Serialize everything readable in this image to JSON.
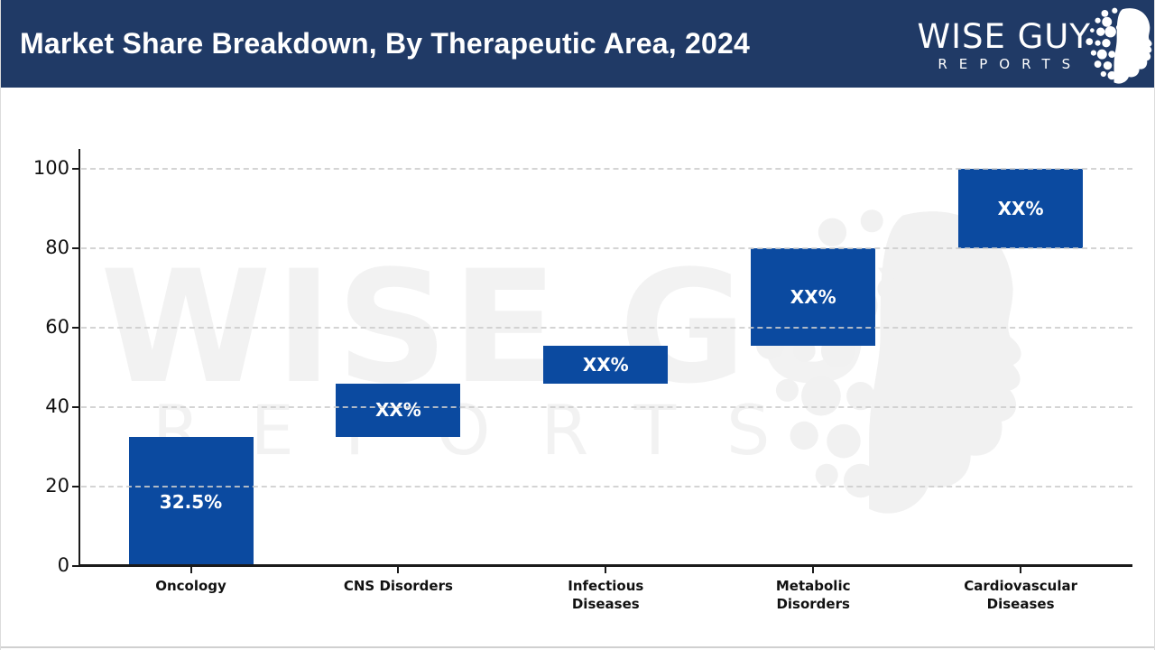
{
  "header": {
    "title": "Market Share Breakdown, By Therapeutic Area, 2024",
    "bg_color": "#203a66",
    "logo": {
      "line1": "WISE GUY",
      "line2": "REPORTS"
    }
  },
  "watermark": {
    "line1": "WISE GUY",
    "line2": "REPORTS"
  },
  "chart_data": {
    "type": "bar",
    "subtype": "waterfall",
    "title": "Market Share Breakdown, By Therapeutic Area, 2024",
    "categories": [
      "Oncology",
      "CNS Disorders",
      "Infectious Diseases",
      "Metabolic Disorders",
      "Cardiovascular Diseases"
    ],
    "series": [
      {
        "name": "Market share (%)",
        "segments": [
          {
            "category": "Oncology",
            "start": 0,
            "end": 32.5,
            "label": "32.5%"
          },
          {
            "category": "CNS Disorders",
            "start": 32.5,
            "end": 46,
            "label": "XX%"
          },
          {
            "category": "Infectious Diseases",
            "start": 46,
            "end": 55.5,
            "label": "XX%"
          },
          {
            "category": "Metabolic Disorders",
            "start": 55.5,
            "end": 80,
            "label": "XX%"
          },
          {
            "category": "Cardiovascular Diseases",
            "start": 80,
            "end": 100,
            "label": "XX%"
          }
        ]
      }
    ],
    "xlabel": "",
    "ylabel": "",
    "ylim": [
      0,
      105
    ],
    "yticks": [
      0,
      20,
      40,
      60,
      80,
      100
    ],
    "grid": "horizontal-dashed",
    "legend": "none",
    "bar_color": "#0b4aa0",
    "bar_label_color": "#ffffff",
    "axis_color": "#1a1a1a",
    "gridline_color": "#d9d9d9"
  }
}
